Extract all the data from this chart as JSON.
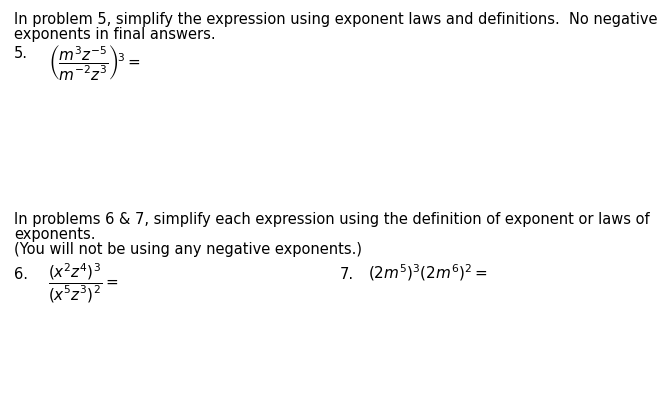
{
  "background_color": "#ffffff",
  "text_color": "#000000",
  "fig_width": 6.61,
  "fig_height": 3.95,
  "dpi": 100,
  "paragraph1_line1": "In problem 5, simplify the expression using exponent laws and definitions.  No negative",
  "paragraph1_line2": "exponents in final answers.",
  "label5": "5.",
  "paragraph2_line1": "In problems 6 & 7, simplify each expression using the definition of exponent or laws of",
  "paragraph2_line2": "exponents.",
  "paragraph2_line3": "(You will not be using any negative exponents.)",
  "label6": "6.",
  "label7": "7.",
  "font_size_text": 10.5,
  "font_size_math": 11
}
